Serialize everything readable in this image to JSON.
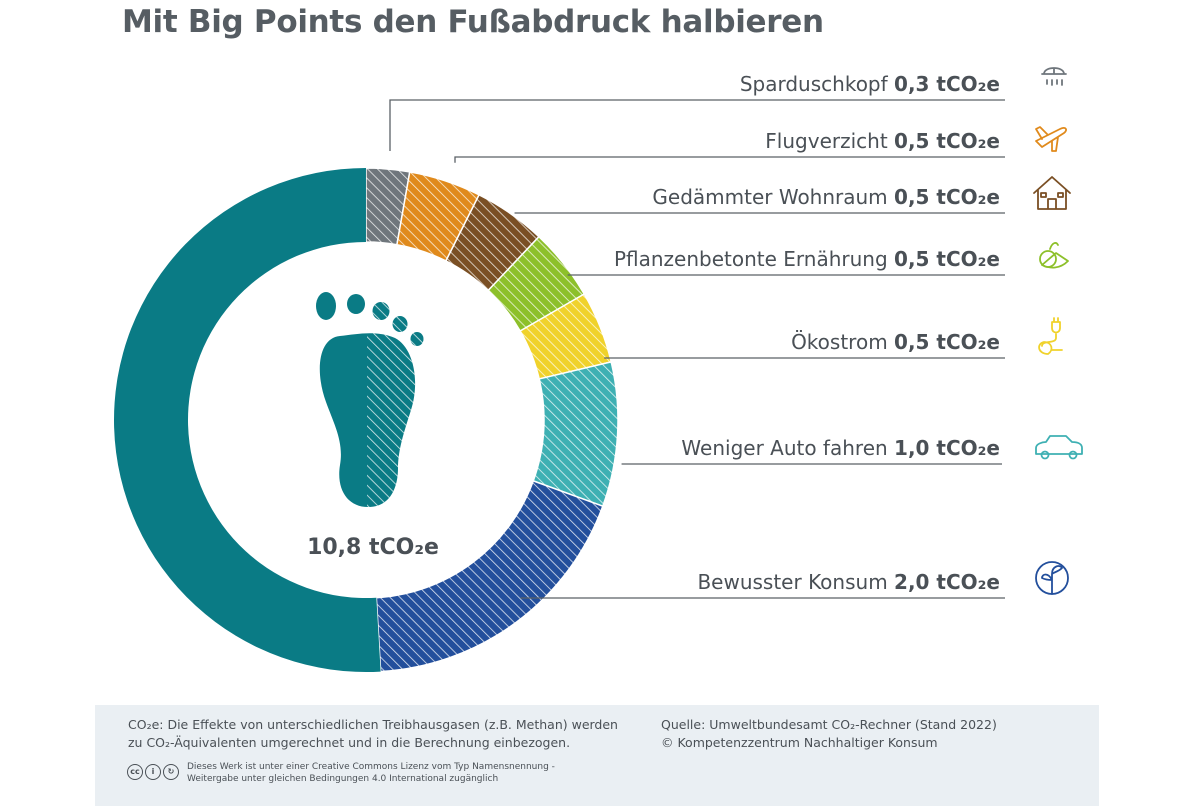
{
  "title": "Mit Big Points den Fußabdruck halbieren",
  "colors": {
    "footprint": "#0a7b85",
    "slices": [
      "#6f767c",
      "#e08a1c",
      "#7a4f24",
      "#8dc02a",
      "#f0d22b",
      "#3eb0b3",
      "#234f9c"
    ]
  },
  "chart_data": {
    "type": "pie",
    "variant": "donut",
    "unit": "tCO₂e",
    "total_label": "10,8 tCO₂e",
    "total": 10.8,
    "remainder_value": 5.5,
    "slices": [
      {
        "name": "Sparduschkopf",
        "value": 0.3,
        "value_label": "0,3 tCO₂e",
        "icon": "shower-head-icon"
      },
      {
        "name": "Flugverzicht",
        "value": 0.5,
        "value_label": "0,5 tCO₂e",
        "icon": "airplane-icon"
      },
      {
        "name": "Gedämmter Wohnraum",
        "value": 0.5,
        "value_label": "0,5 tCO₂e",
        "icon": "house-icon"
      },
      {
        "name": "Pflanzenbetonte Ernährung",
        "value": 0.5,
        "value_label": "0,5 tCO₂e",
        "icon": "vegetables-icon"
      },
      {
        "name": "Ökostrom",
        "value": 0.5,
        "value_label": "0,5 tCO₂e",
        "icon": "green-power-plug-icon"
      },
      {
        "name": "Weniger Auto fahren",
        "value": 1.0,
        "value_label": "1,0 tCO₂e",
        "icon": "car-icon"
      },
      {
        "name": "Bewusster Konsum",
        "value": 2.0,
        "value_label": "2,0 tCO₂e",
        "icon": "globe-plant-icon"
      }
    ]
  },
  "footer": {
    "note_line1": "CO₂e: Die Effekte von unterschiedlichen Treibhausgasen (z.B. Methan) werden",
    "note_line2": "zu CO₂-Äquivalenten umgerechnet und in die Berechnung einbezogen.",
    "source_line1": "Quelle: Umweltbundesamt CO₂-Rechner (Stand 2022)",
    "source_line2": "© Kompetenzzentrum Nachhaltiger Konsum",
    "license_line1": "Dieses Werk ist unter einer Creative Commons Lizenz vom Typ Namensnennung -",
    "license_line2": "Weitergabe unter gleichen Bedingungen 4.0 International zugänglich",
    "license_badges": [
      "cc",
      "i",
      "↻"
    ]
  }
}
